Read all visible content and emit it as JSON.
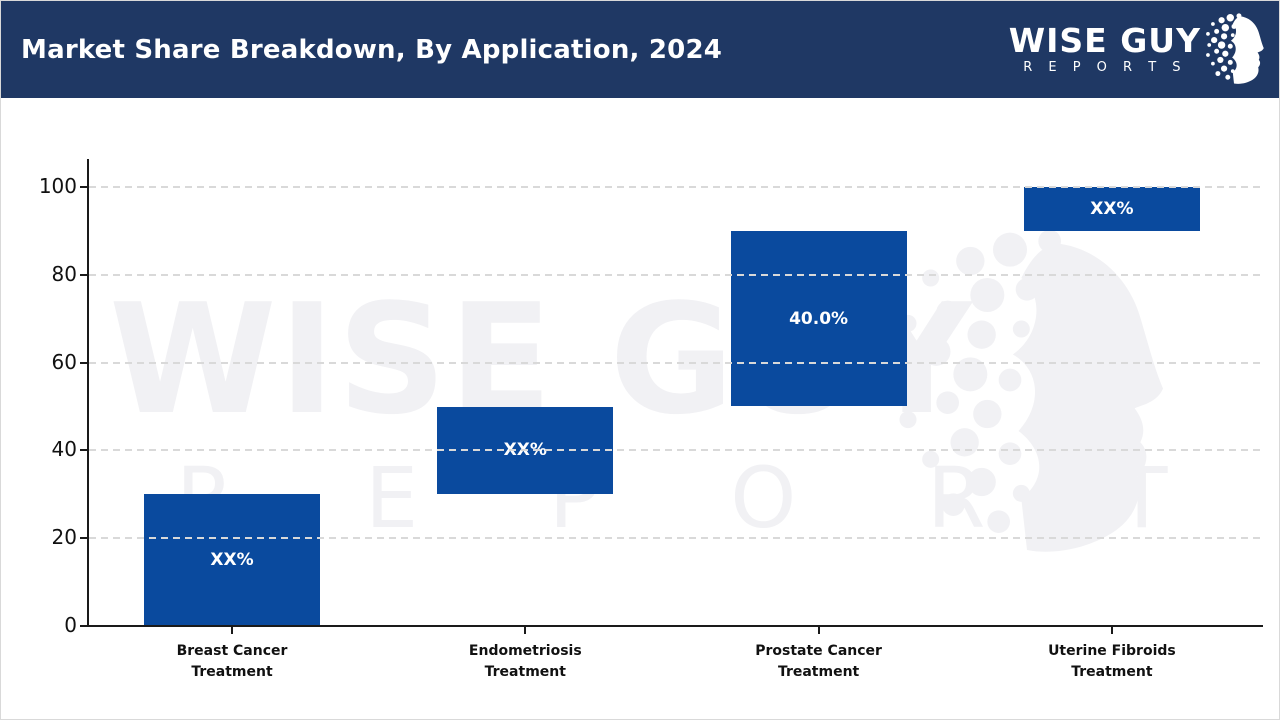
{
  "header": {
    "title": "Market Share Breakdown, By Application, 2024",
    "bg_color": "#1f3864",
    "logo": {
      "line1": "WISE GUY",
      "line2": "R E P O R T S"
    }
  },
  "watermark": {
    "line1": "WISE GUY",
    "line2": "R E P O R T S"
  },
  "chart_data": {
    "type": "bar",
    "variant": "floating-segment-waterfall",
    "title": "Market Share Breakdown, By Application, 2024",
    "categories": [
      {
        "line1": "Breast Cancer",
        "line2": "Treatment"
      },
      {
        "line1": "Endometriosis",
        "line2": "Treatment"
      },
      {
        "line1": "Prostate Cancer",
        "line2": "Treatment"
      },
      {
        "line1": "Uterine Fibroids",
        "line2": "Treatment"
      }
    ],
    "bars": [
      {
        "category": "Breast Cancer Treatment",
        "start": 0,
        "end": 30,
        "label": "XX%"
      },
      {
        "category": "Endometriosis Treatment",
        "start": 30,
        "end": 50,
        "label": "XX%"
      },
      {
        "category": "Prostate Cancer Treatment",
        "start": 50,
        "end": 90,
        "label": "40.0%"
      },
      {
        "category": "Uterine Fibroids Treatment",
        "start": 90,
        "end": 100,
        "label": "XX%"
      }
    ],
    "yticks": [
      0,
      20,
      40,
      60,
      80,
      100
    ],
    "ylim": [
      0,
      106
    ],
    "xlabel": "",
    "ylabel": "",
    "legend": "none",
    "grid": {
      "horizontal": true,
      "style": "dashed",
      "color": "#d9d9d9",
      "above_bars": true
    },
    "bar_color": "#0a4a9e",
    "bar_label_color": "#ffffff"
  }
}
